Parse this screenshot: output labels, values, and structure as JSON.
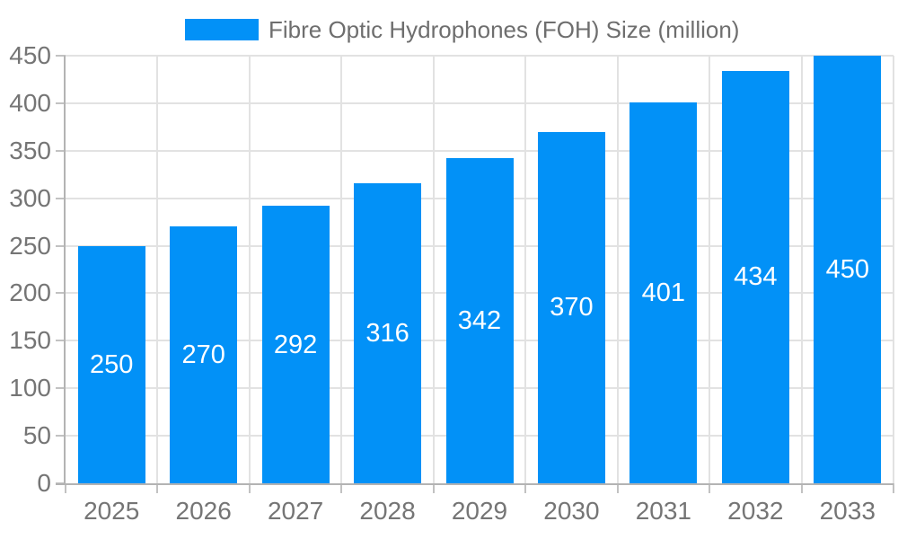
{
  "chart_data": {
    "type": "bar",
    "title": "Fibre Optic Hydrophones (FOH) Size (million)",
    "series_name": "Fibre Optic Hydrophones (FOH) Size (million)",
    "categories": [
      "2025",
      "2026",
      "2027",
      "2028",
      "2029",
      "2030",
      "2031",
      "2032",
      "2033"
    ],
    "values": [
      250,
      270,
      292,
      316,
      342,
      370,
      401,
      434,
      450
    ],
    "value_labels": [
      "250",
      "270",
      "292",
      "316",
      "342",
      "370",
      "401",
      "434",
      "450"
    ],
    "xlabel": "",
    "ylabel": "",
    "ylim": [
      0,
      450
    ],
    "yticks": [
      0,
      50,
      100,
      150,
      200,
      250,
      300,
      350,
      400,
      450
    ],
    "grid": true,
    "legend_position": "top",
    "bar_labels_inside": true,
    "colors": {
      "bar": "#0291f7",
      "bar_label": "#ffffff",
      "axis_line": "#b3b3b3",
      "tick_mark": "#c2c2c2",
      "gridline": "#e2e2e2",
      "axis_label": "#757575",
      "legend_text": "#6e6e6e",
      "background": "#ffffff"
    }
  }
}
